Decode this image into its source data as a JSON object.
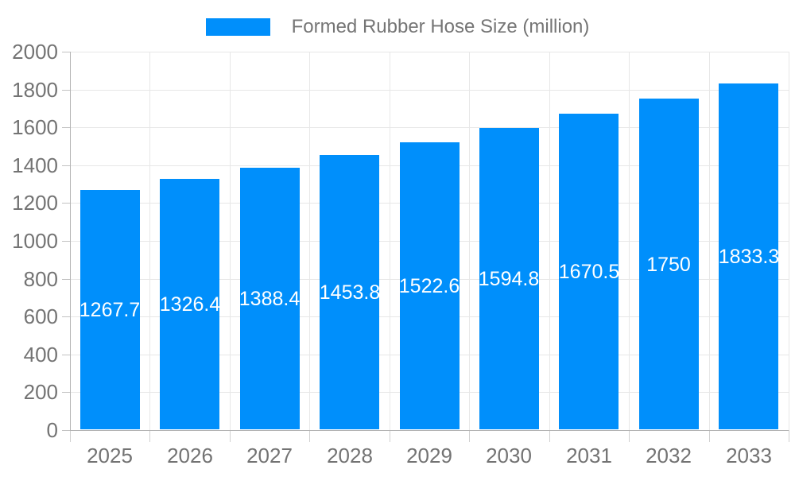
{
  "legend": {
    "label": "Formed Rubber Hose Size (million)"
  },
  "chart_data": {
    "type": "bar",
    "title": "Formed Rubber Hose Size (million)",
    "categories": [
      "2025",
      "2026",
      "2027",
      "2028",
      "2029",
      "2030",
      "2031",
      "2032",
      "2033"
    ],
    "values": [
      1267.7,
      1326.4,
      1388.4,
      1453.8,
      1522.6,
      1594.8,
      1670.5,
      1750,
      1833.3
    ],
    "value_labels": [
      "1267.7",
      "1326.4",
      "1388.4",
      "1453.8",
      "1522.6",
      "1594.8",
      "1670.5",
      "1750",
      "1833.3"
    ],
    "xlabel": "",
    "ylabel": "",
    "ylim": [
      0,
      2000
    ],
    "ytick_step": 200,
    "ytick_labels": [
      "0",
      "200",
      "400",
      "600",
      "800",
      "1000",
      "1200",
      "1400",
      "1600",
      "1800",
      "2000"
    ],
    "grid": true,
    "legend_position": "top-center",
    "data_label_position": "bar-center",
    "colors": {
      "bar": "#008FFB",
      "grid": "#e7e7e7",
      "axis": "#b3b3b3",
      "axis_label": "#737373",
      "legend_label": "#757575",
      "data_label": "#ffffff",
      "background": "#ffffff"
    }
  }
}
